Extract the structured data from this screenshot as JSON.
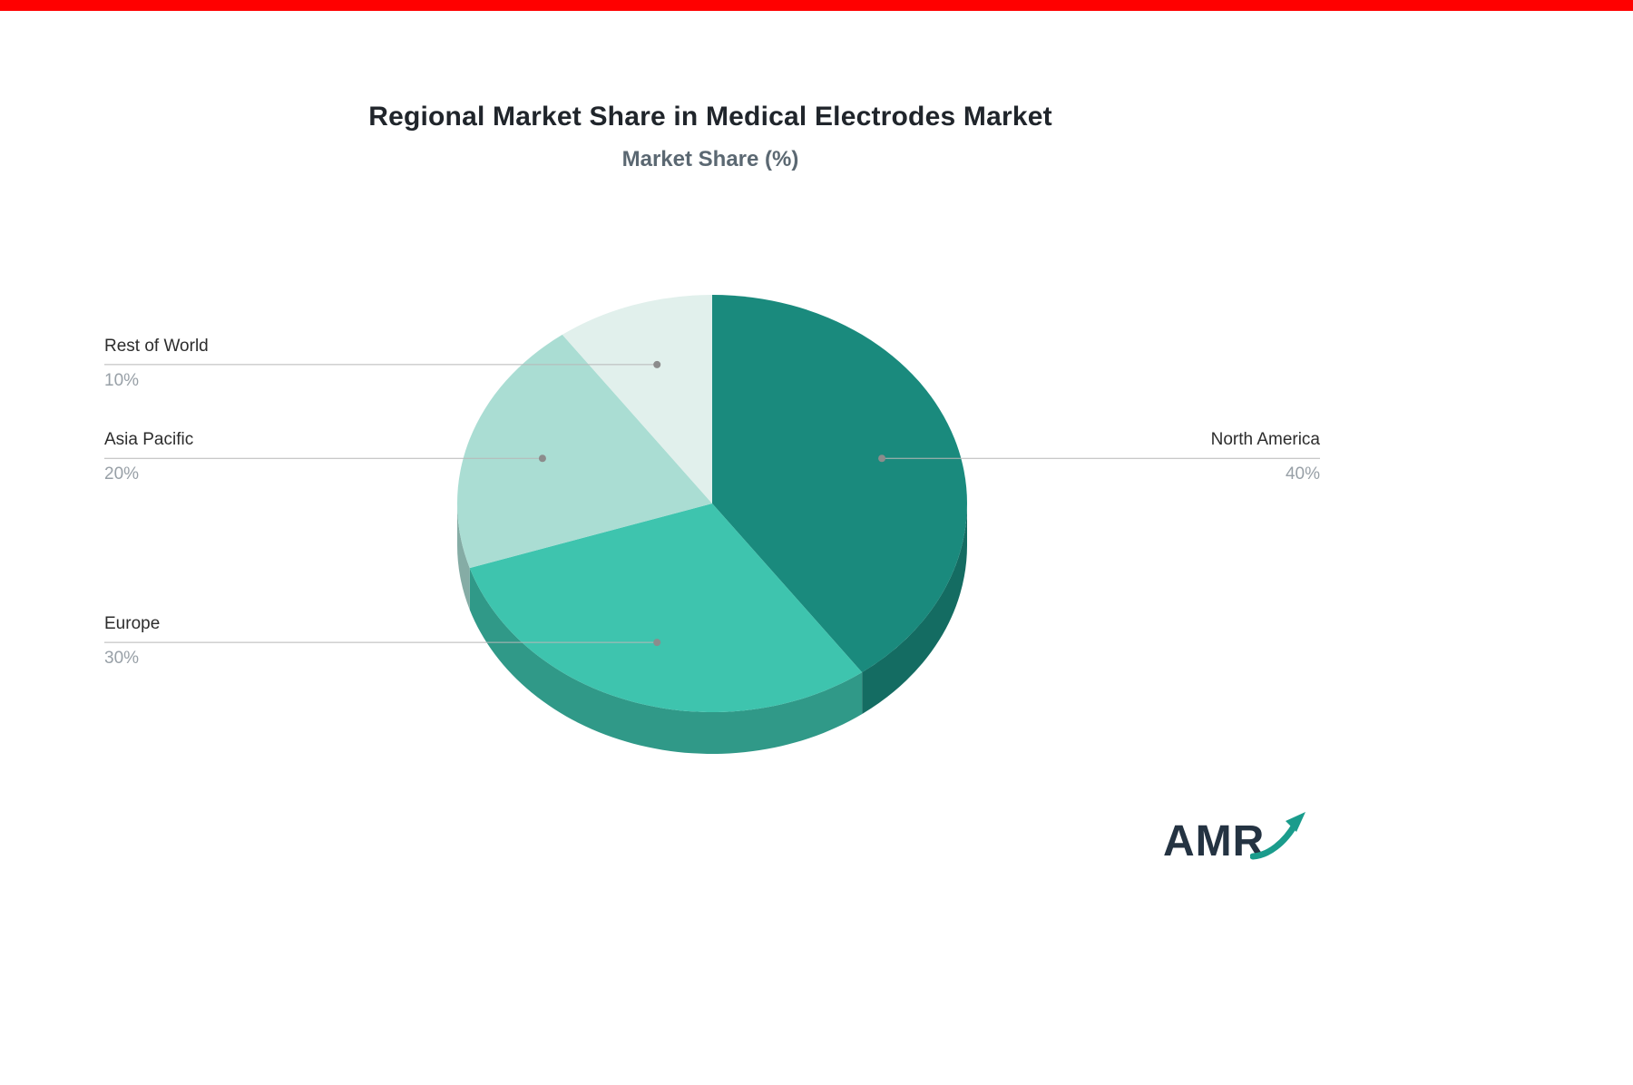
{
  "page": {
    "background": "#ffffff",
    "top_strip_color": "#ff0000"
  },
  "chart_data": {
    "type": "pie",
    "title": "Regional Market Share in Medical Electrodes Market",
    "subtitle": "Market Share (%)",
    "unit": "%",
    "direction": "clockwise",
    "start_angle_deg": 0,
    "effect_3d": true,
    "legend": "none",
    "categories": [
      "North America",
      "Europe",
      "Asia Pacific",
      "Rest of World"
    ],
    "values": [
      40,
      30,
      20,
      10
    ],
    "colors": [
      "#1a8a7d",
      "#3ec4ae",
      "#aaddd3",
      "#e1f0ec"
    ],
    "labels": [
      {
        "name": "North America",
        "value_label": "40%",
        "side": "right"
      },
      {
        "name": "Europe",
        "value_label": "30%",
        "side": "left"
      },
      {
        "name": "Asia Pacific",
        "value_label": "20%",
        "side": "left"
      },
      {
        "name": "Rest of World",
        "value_label": "10%",
        "side": "left"
      }
    ],
    "leader_line_color": "#b7b7b7",
    "leader_dot_color": "#8c8c8c"
  },
  "logo": {
    "text": "AMR",
    "arrow_color": "#1a9c8c"
  }
}
